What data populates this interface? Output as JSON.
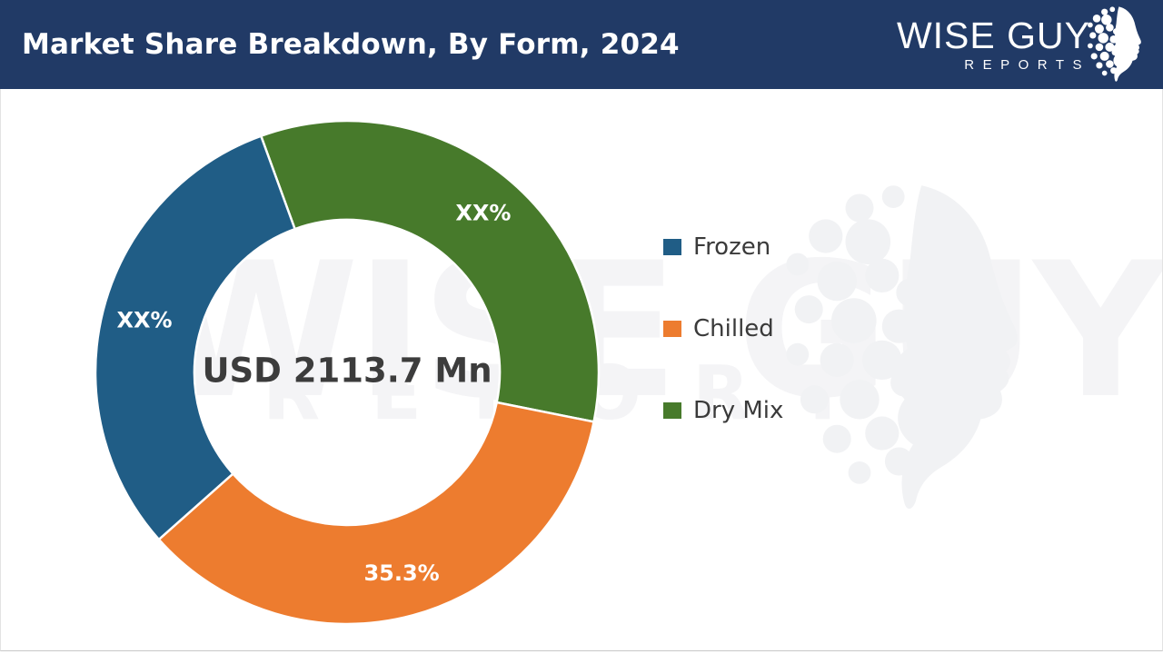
{
  "header": {
    "title": "Market Share Breakdown, By Form, 2024",
    "logo": {
      "line1": "WISE GUY",
      "line2": "REPORTS"
    }
  },
  "watermark": {
    "line1": "WISE GUY",
    "line2": "REPORTS"
  },
  "chart_data": {
    "type": "pie",
    "subtype": "donut",
    "title": "Market Share Breakdown, By Form, 2024",
    "center_label": "USD 2113.7 Mn",
    "start_angle_deg": 340,
    "direction": "clockwise",
    "series": [
      {
        "name": "Dry Mix",
        "share_pct": 33.7,
        "label": "XX%",
        "color": "#477A2B"
      },
      {
        "name": "Chilled",
        "share_pct": 35.3,
        "label": "35.3%",
        "color": "#ED7C2F"
      },
      {
        "name": "Frozen",
        "share_pct": 31.0,
        "label": "XX%",
        "color": "#205D86"
      }
    ],
    "legend": {
      "position": "right",
      "items": [
        {
          "label": "Frozen",
          "color": "#205D86"
        },
        {
          "label": "Chilled",
          "color": "#ED7C2F"
        },
        {
          "label": "Dry Mix",
          "color": "#477A2B"
        }
      ]
    },
    "colors": {
      "header_bar": "#213A66",
      "center_text": "#3c3c3c",
      "slice_divider": "#ffffff"
    }
  }
}
